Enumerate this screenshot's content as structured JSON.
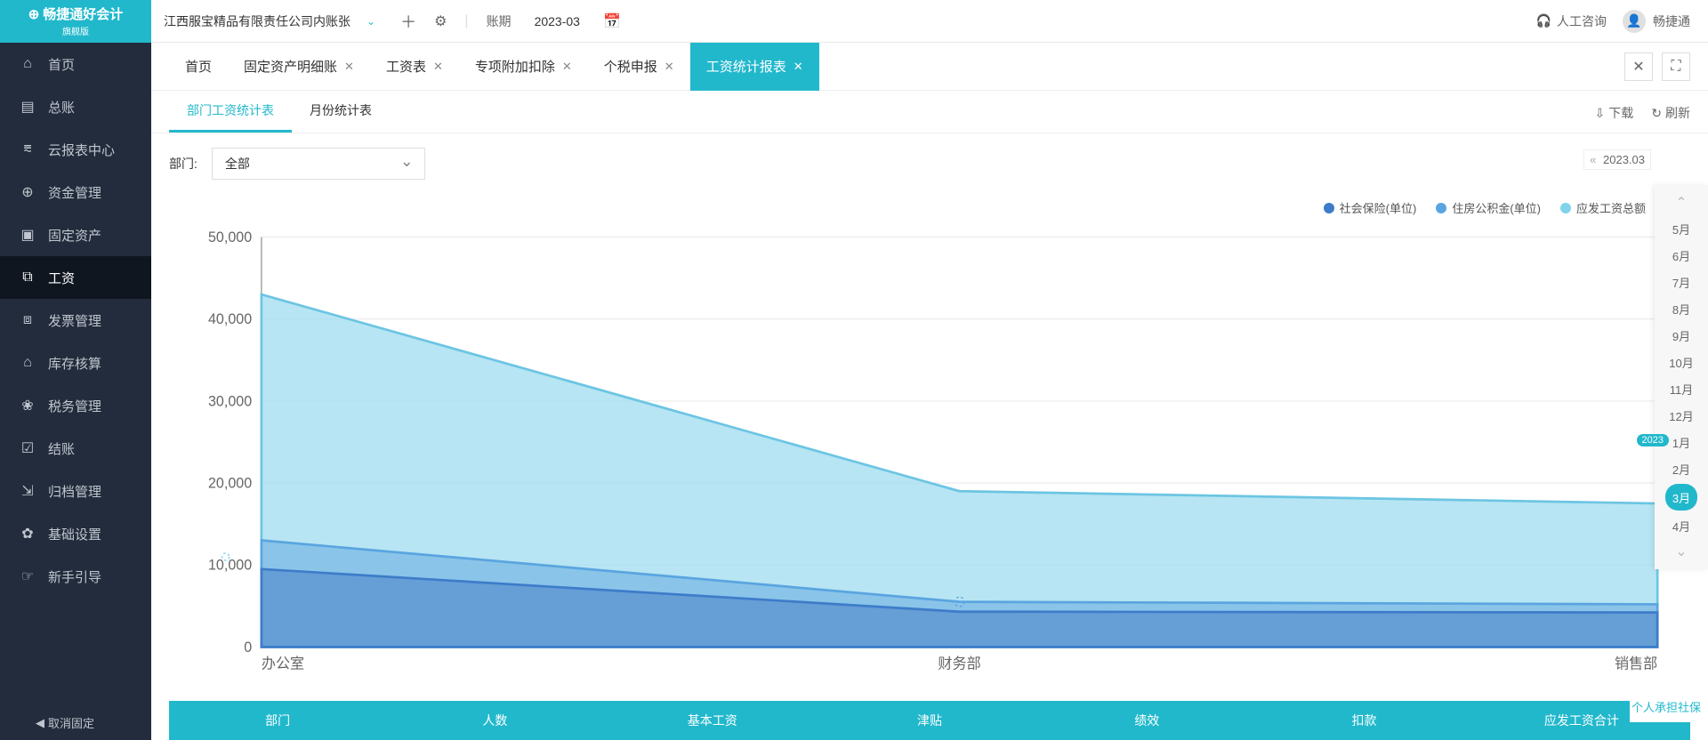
{
  "header": {
    "brand": "畅捷通好会计",
    "brand_sub": "旗舰版",
    "company": "江西服宝精品有限责任公司内账张",
    "period_label": "账期",
    "period_value": "2023-03",
    "support": "人工咨询",
    "username": "畅捷通"
  },
  "sidebar": {
    "items": [
      {
        "icon": "⌂",
        "label": "首页"
      },
      {
        "icon": "▤",
        "label": "总账"
      },
      {
        "icon": "⩳",
        "label": "云报表中心"
      },
      {
        "icon": "⊕",
        "label": "资金管理"
      },
      {
        "icon": "▣",
        "label": "固定资产"
      },
      {
        "icon": "⧉",
        "label": "工资",
        "active": true
      },
      {
        "icon": "⧈",
        "label": "发票管理"
      },
      {
        "icon": "⌂",
        "label": "库存核算"
      },
      {
        "icon": "❀",
        "label": "税务管理"
      },
      {
        "icon": "☑",
        "label": "结账"
      },
      {
        "icon": "⇲",
        "label": "归档管理"
      },
      {
        "icon": "✿",
        "label": "基础设置"
      },
      {
        "icon": "☞",
        "label": "新手引导"
      }
    ],
    "pin": "取消固定"
  },
  "tabs": [
    {
      "label": "首页"
    },
    {
      "label": "固定资产明细账",
      "closable": true
    },
    {
      "label": "工资表",
      "closable": true
    },
    {
      "label": "专项附加扣除",
      "closable": true
    },
    {
      "label": "个税申报",
      "closable": true
    },
    {
      "label": "工资统计报表",
      "closable": true,
      "active": true
    }
  ],
  "subtabs": {
    "items": [
      {
        "label": "部门工资统计表",
        "active": true
      },
      {
        "label": "月份统计表"
      }
    ],
    "download": "下载",
    "refresh": "刷新"
  },
  "filter": {
    "dept_label": "部门:",
    "dept_value": "全部"
  },
  "legend": [
    {
      "label": "社会保险(单位)",
      "color": "#3d7cc9"
    },
    {
      "label": "住房公积金(单位)",
      "color": "#5aa5e0"
    },
    {
      "label": "应发工资总额",
      "color": "#7fd3eb"
    }
  ],
  "chart": {
    "type": "area",
    "y_ticks": [
      0,
      10000,
      20000,
      30000,
      40000,
      50000
    ],
    "y_labels": [
      "0",
      "10,000",
      "20,000",
      "30,000",
      "40,000",
      "50,000"
    ],
    "categories": [
      "办公室",
      "财务部",
      "销售部"
    ],
    "series": [
      {
        "name": "应发工资总额",
        "color": "#9fdcef",
        "stroke": "#6cc5e3",
        "values": [
          43000,
          19000,
          17500
        ]
      },
      {
        "name": "住房公积金(单位)",
        "color": "#7bb8e6",
        "stroke": "#5aa5e0",
        "values": [
          13000,
          5500,
          5200
        ]
      },
      {
        "name": "社会保险(单位)",
        "color": "#5a92cf",
        "stroke": "#3d7cc9",
        "values": [
          9500,
          4300,
          4200
        ]
      }
    ],
    "top_overlay_marker_x": "销售部",
    "grid_color": "#eeeeee",
    "axis_color": "#333333",
    "font_size": 12,
    "ylim": [
      0,
      50000
    ]
  },
  "table_headers": [
    "部门",
    "人数",
    "基本工资",
    "津贴",
    "绩效",
    "扣款",
    "应发工资合计"
  ],
  "overflow_label": "个人承担社保",
  "month_rail": {
    "top_label": "2023.03",
    "months": [
      "5月",
      "6月",
      "7月",
      "8月",
      "9月",
      "10月",
      "11月",
      "12月",
      "1月",
      "2月",
      "3月",
      "4月"
    ],
    "active": "3月",
    "year_badge": "2023"
  }
}
